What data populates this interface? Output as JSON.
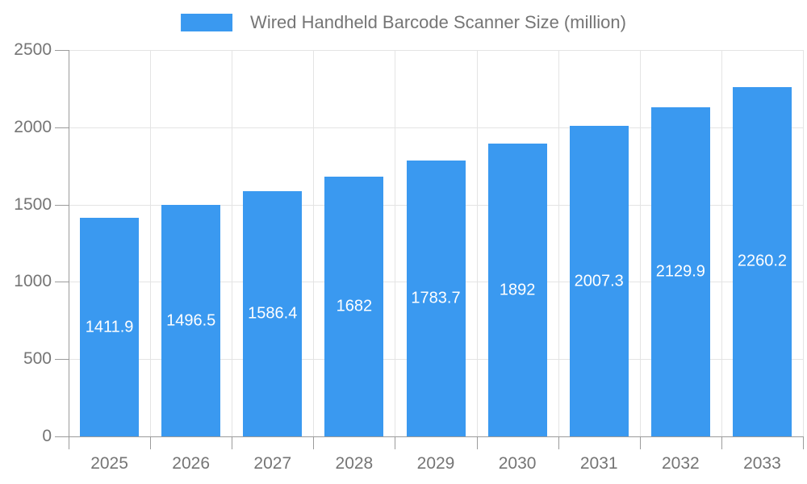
{
  "legend": {
    "label": "Wired Handheld Barcode Scanner Size (million)"
  },
  "chart_data": {
    "type": "bar",
    "title": "Wired Handheld Barcode Scanner Size (million)",
    "categories": [
      "2025",
      "2026",
      "2027",
      "2028",
      "2029",
      "2030",
      "2031",
      "2032",
      "2033"
    ],
    "values": [
      1411.9,
      1496.5,
      1586.4,
      1682,
      1783.7,
      1892,
      2007.3,
      2129.9,
      2260.2
    ],
    "xlabel": "",
    "ylabel": "",
    "ylim": [
      0,
      2500
    ],
    "yticks": [
      0,
      500,
      1000,
      1500,
      2000,
      2500
    ],
    "grid": true,
    "legend_position": "top",
    "bar_label_position": "inside-middle"
  },
  "colors": {
    "bar": "#3a99f0",
    "bar_label": "#ffffff",
    "axis_text": "#757575",
    "legend_text": "#757575",
    "grid_line": "#e4e4e4",
    "axis_line": "#9b9b9b"
  }
}
